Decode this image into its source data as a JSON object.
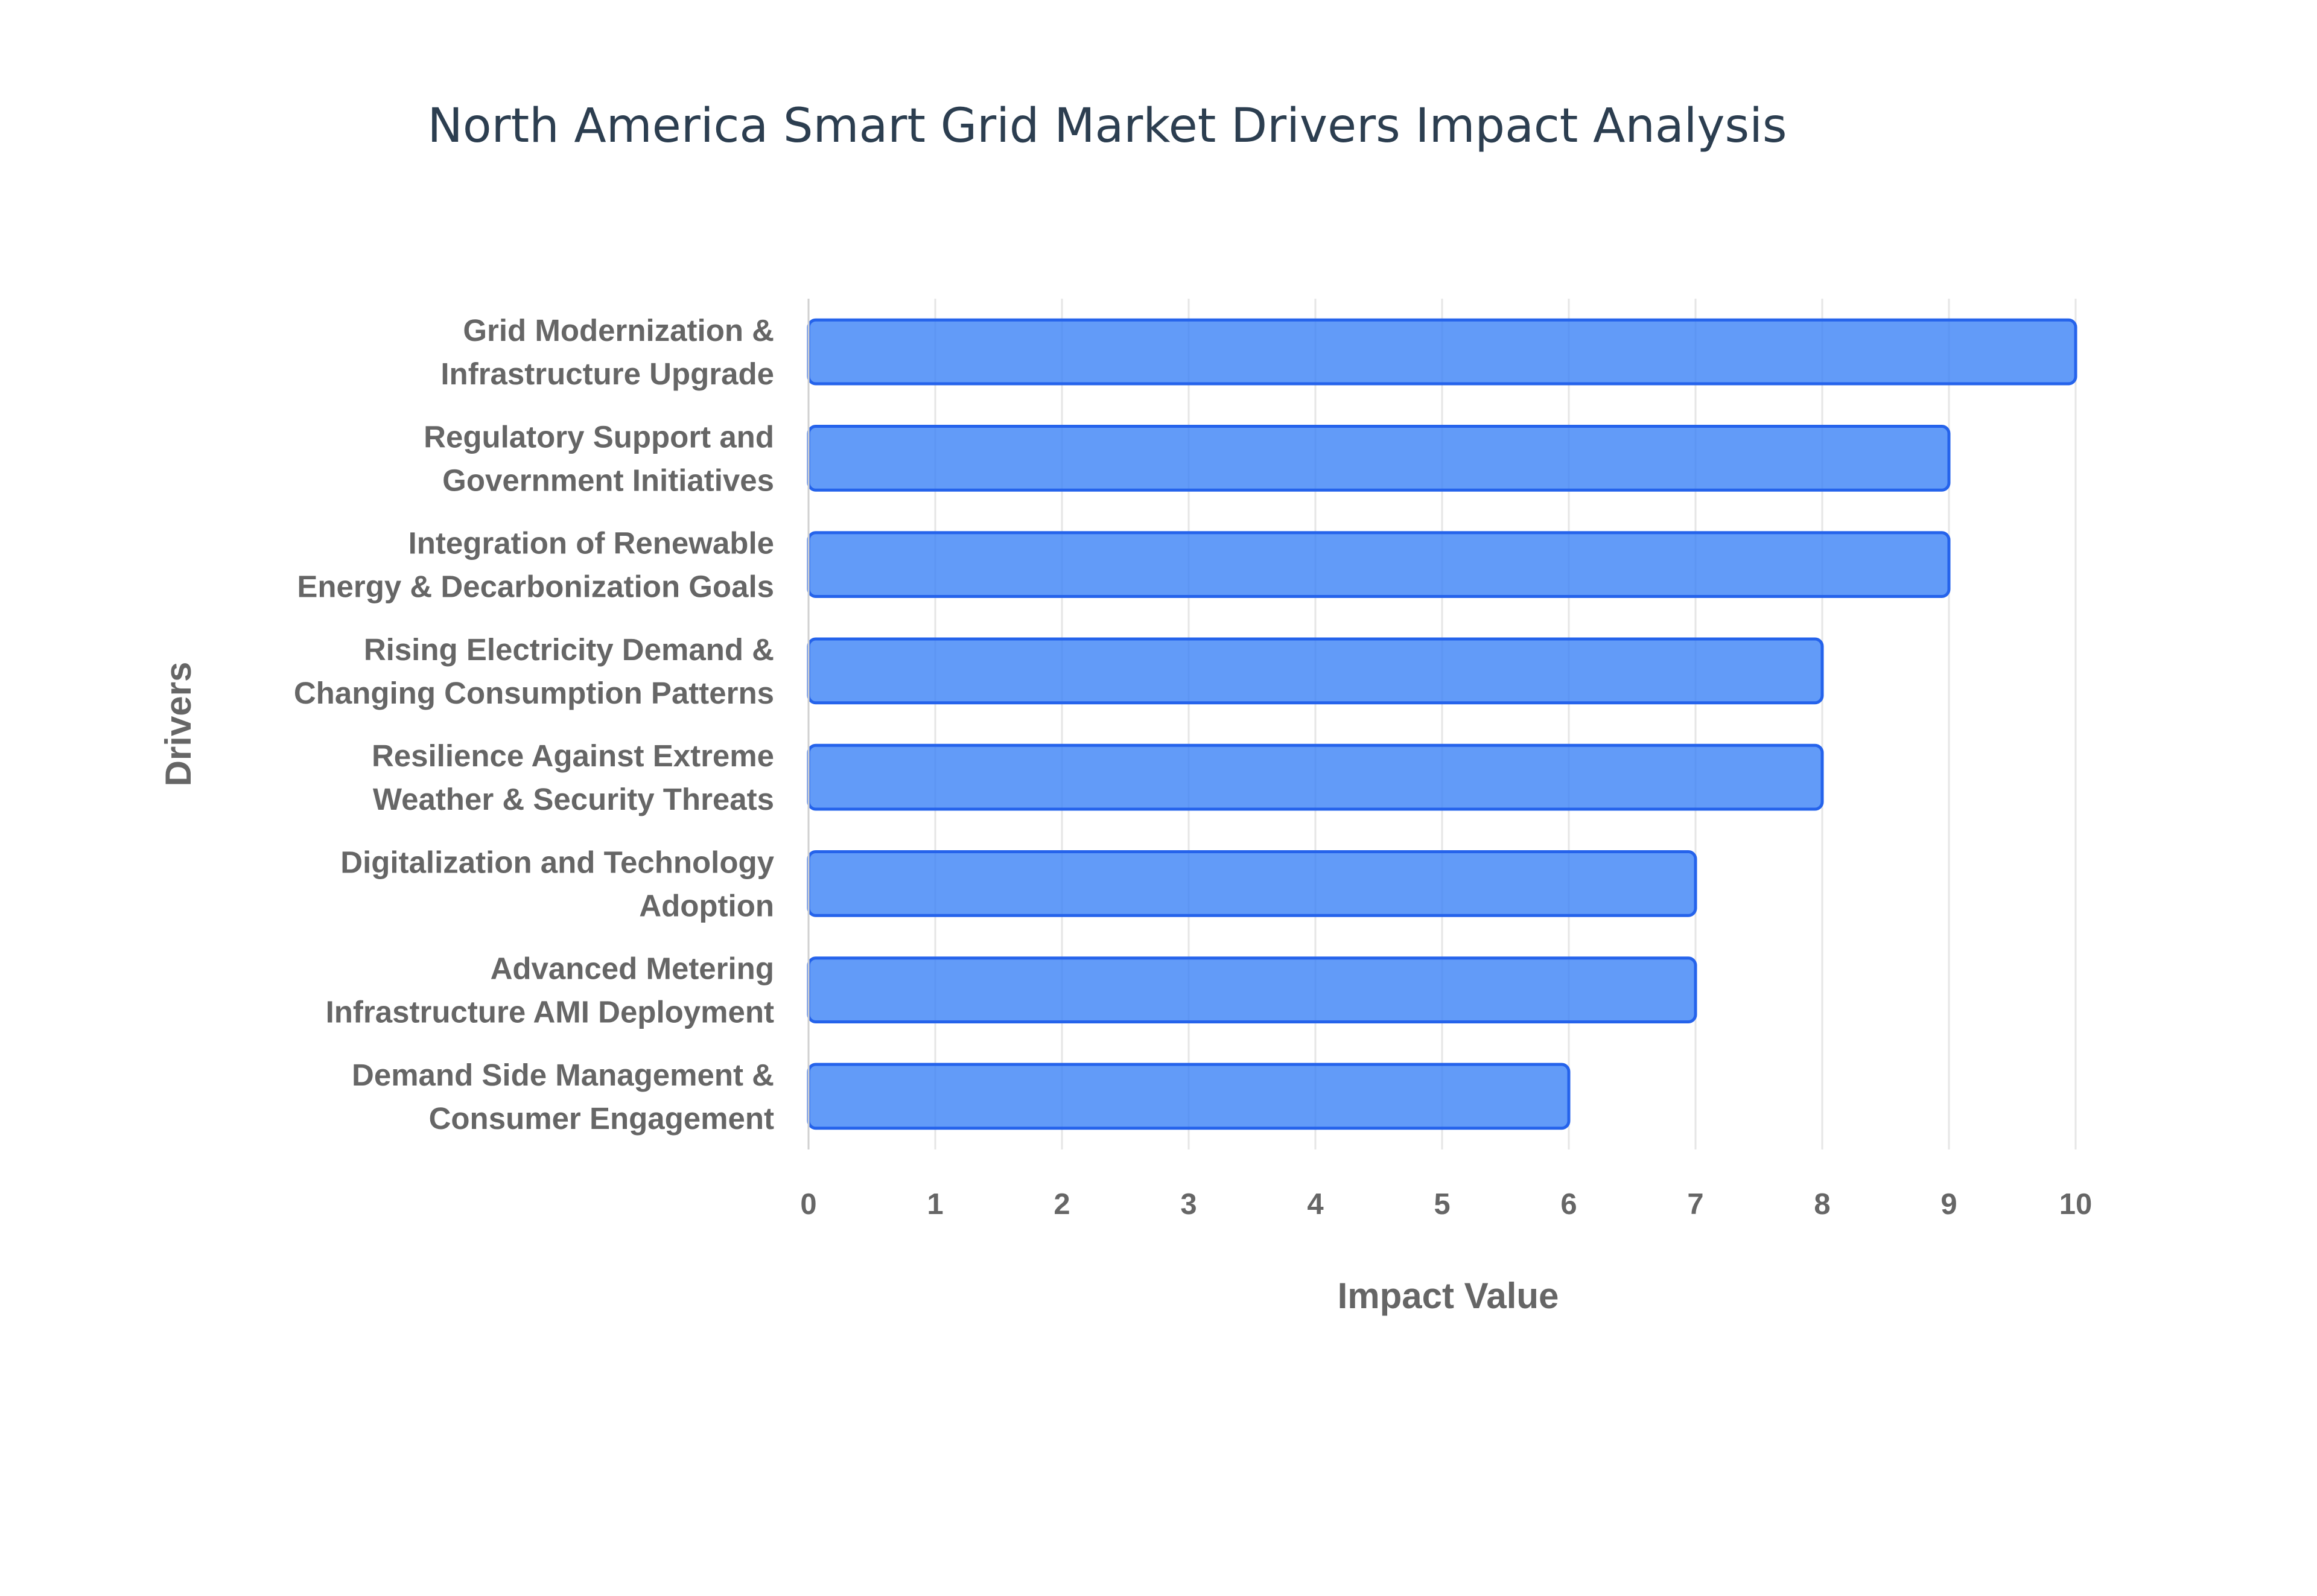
{
  "chart_data": {
    "type": "bar",
    "orientation": "horizontal",
    "title": "North America Smart Grid Market Drivers Impact Analysis",
    "xlabel": "Impact Value",
    "ylabel": "Drivers",
    "xlim": [
      0,
      10
    ],
    "x_ticks": [
      "0",
      "1",
      "2",
      "3",
      "4",
      "5",
      "6",
      "7",
      "8",
      "9",
      "10"
    ],
    "grid": true,
    "categories": [
      [
        "Grid Modernization &",
        "Infrastructure Upgrade"
      ],
      [
        "Regulatory Support and",
        "Government Initiatives"
      ],
      [
        "Integration of Renewable",
        "Energy & Decarbonization Goals"
      ],
      [
        "Rising Electricity Demand &",
        "Changing Consumption Patterns"
      ],
      [
        "Resilience Against Extreme",
        "Weather & Security Threats"
      ],
      [
        "Digitalization and Technology",
        "Adoption"
      ],
      [
        "Advanced Metering",
        "Infrastructure AMI Deployment"
      ],
      [
        "Demand Side Management &",
        "Consumer Engagement"
      ]
    ],
    "values": [
      10,
      9,
      9,
      8,
      8,
      7,
      7,
      6
    ],
    "colors": {
      "bar_fill": "#3b82f6",
      "bar_fill_opacity": 0.8,
      "bar_stroke": "#2563eb",
      "title": "#2c3e50",
      "text": "#666666"
    }
  }
}
